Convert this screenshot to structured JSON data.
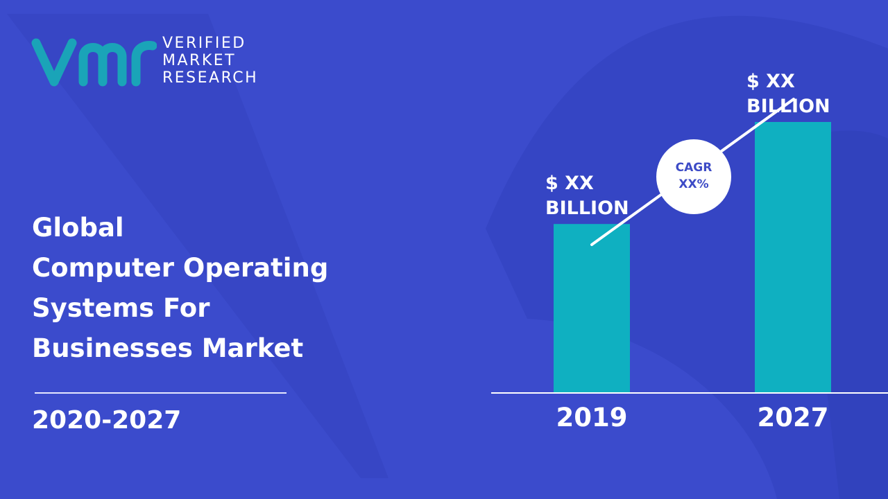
{
  "brand": {
    "lines": [
      "VERIFIED",
      "MARKET",
      "RESEARCH"
    ],
    "logo_color": "#1aa4b8"
  },
  "title_lines": [
    "Global",
    "Computer Operating",
    "Systems For",
    "Businesses Market"
  ],
  "period": "2020-2027",
  "colors": {
    "background": "#3b4bcc",
    "bar": "#0fb0c1",
    "text": "#ffffff",
    "cagr_text": "#3d4bc6"
  },
  "chart_data": {
    "type": "bar",
    "categories": [
      "2019",
      "2027"
    ],
    "values": [
      53,
      85
    ],
    "value_labels": [
      [
        "$ XX",
        "BILLION"
      ],
      [
        "$ XX",
        "BILLION"
      ]
    ],
    "ylim": [
      0,
      100
    ],
    "annotation": {
      "lines": [
        "CAGR",
        "XX%"
      ]
    },
    "grid": false,
    "legend": false
  }
}
